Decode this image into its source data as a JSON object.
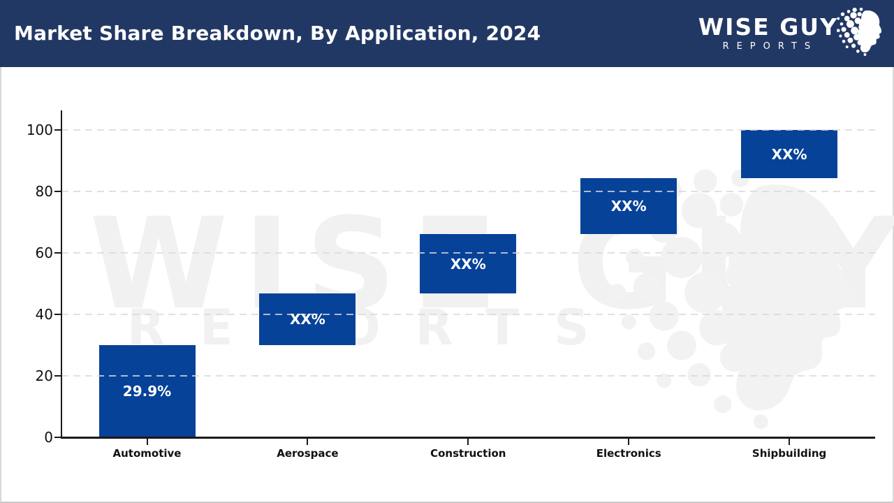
{
  "header": {
    "title": "Market Share Breakdown, By Application, 2024",
    "bg_color": "#223864",
    "logo": {
      "brand": "WISE GUY",
      "subbrand": "REPORTS"
    }
  },
  "watermark": {
    "line1": "WISE GUY",
    "line2": "REPORTS",
    "color": "#f1f1f1"
  },
  "chart_data": {
    "type": "bar",
    "variant": "waterfall-floating-bars",
    "title": "Market Share Breakdown, By Application, 2024",
    "xlabel": "",
    "ylabel": "",
    "categories": [
      "Automotive",
      "Aerospace",
      "Construction",
      "Electronics",
      "Shipbuilding"
    ],
    "segments": [
      {
        "category": "Automotive",
        "start": 0,
        "end": 29.9,
        "label": "29.9%"
      },
      {
        "category": "Aerospace",
        "start": 29.9,
        "end": 46.8,
        "label": "XX%"
      },
      {
        "category": "Construction",
        "start": 46.8,
        "end": 66.1,
        "label": "XX%"
      },
      {
        "category": "Electronics",
        "start": 66.1,
        "end": 84.3,
        "label": "XX%"
      },
      {
        "category": "Shipbuilding",
        "start": 84.3,
        "end": 100,
        "label": "XX%"
      }
    ],
    "y_ticks": [
      0,
      20,
      40,
      60,
      80,
      100
    ],
    "ylim": [
      0,
      106
    ],
    "grid": "dashed-horizontal-over-bars",
    "legend": "none",
    "bar_color": "#074299",
    "bar_label_color": "#ffffff",
    "axis_color": "#1a1a1a",
    "gridline_color": "#d9d9d9",
    "tick_label_color": "#111111"
  }
}
